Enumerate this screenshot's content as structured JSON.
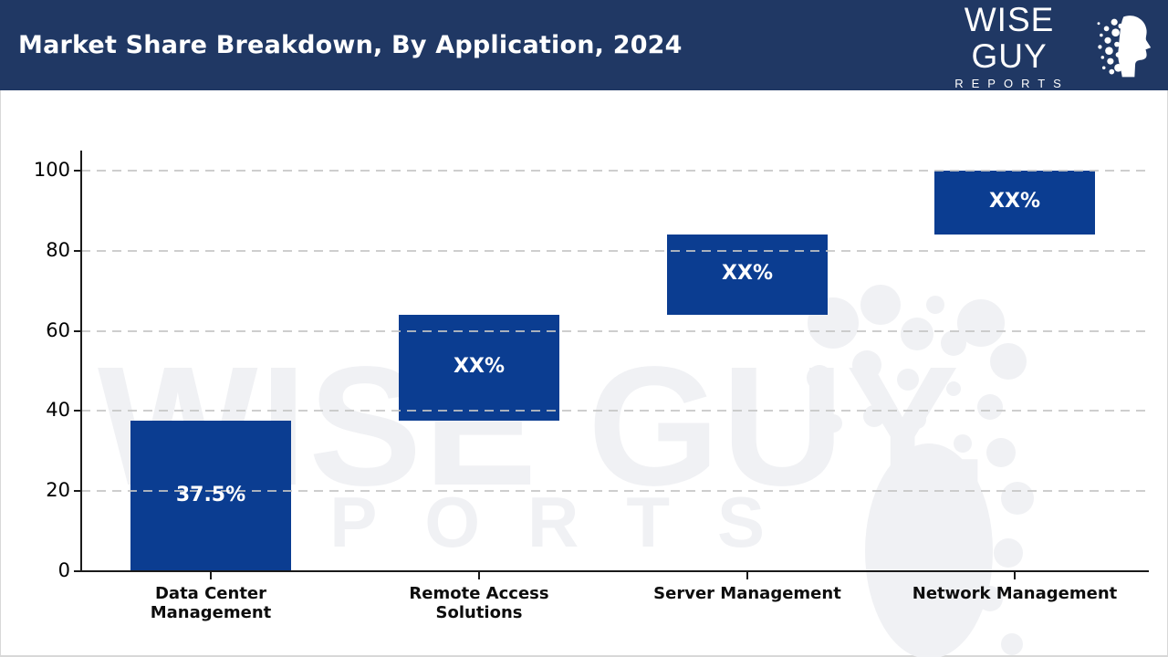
{
  "header": {
    "title": "Market Share Breakdown, By Application, 2024",
    "logo": {
      "line1": "WISE GUY",
      "line2": "REPORTS"
    }
  },
  "watermark": {
    "line1": "WISE GUY.",
    "line2": "REPORTS"
  },
  "chart_data": {
    "type": "bar",
    "subtype": "waterfall",
    "title": "Market Share Breakdown, By Application, 2024",
    "categories": [
      "Data Center Management",
      "Remote Access Solutions",
      "Server Management",
      "Network Management"
    ],
    "x_label_lines": [
      [
        "Data Center",
        "Management"
      ],
      [
        "Remote Access",
        "Solutions"
      ],
      [
        "Server Management"
      ],
      [
        "Network Management"
      ]
    ],
    "segments": [
      {
        "category": "Data Center Management",
        "start": 0,
        "end": 37.5,
        "label": "37.5%"
      },
      {
        "category": "Remote Access Solutions",
        "start": 37.5,
        "end": 64,
        "label": "XX%"
      },
      {
        "category": "Server Management",
        "start": 64,
        "end": 84,
        "label": "XX%"
      },
      {
        "category": "Network Management",
        "start": 84,
        "end": 100,
        "label": "XX%"
      }
    ],
    "ylim": [
      0,
      100
    ],
    "yticks": [
      0,
      20,
      40,
      60,
      80,
      100
    ],
    "grid": "horizontal-dashed",
    "legend": "none",
    "bar_color": "#0b3d91",
    "bar_label_color": "#ffffff",
    "axis_color": "#1a1a1a",
    "header_color": "#203864"
  }
}
